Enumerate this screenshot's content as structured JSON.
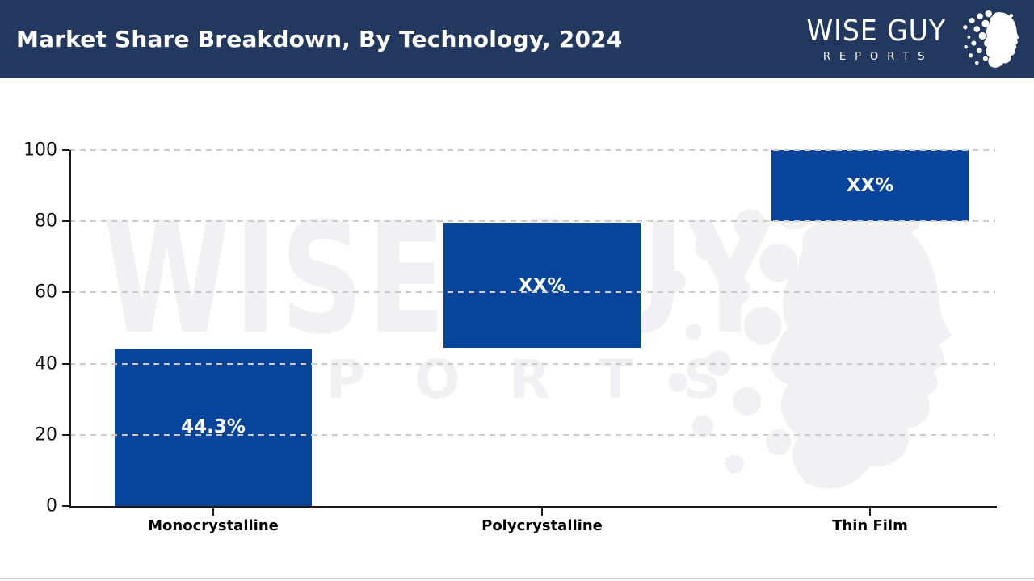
{
  "header": {
    "title": "Market Share Breakdown, By Technology, 2024",
    "bg_color": "#22385f",
    "logo": {
      "line1": "WISE GUY",
      "line2": "REPORTS"
    }
  },
  "watermark": {
    "line1": "WISE GUY",
    "line2": "REPORTS"
  },
  "chart_data": {
    "type": "bar",
    "subtype": "floating-segment-bars (cumulative market-share breakdown)",
    "title": "Market Share Breakdown, By Technology, 2024",
    "categories": [
      "Monocrystalline",
      "Polycrystalline",
      "Thin Film"
    ],
    "bars": [
      {
        "category": "Monocrystalline",
        "start": 0,
        "end": 44.3,
        "label": "44.3%"
      },
      {
        "category": "Polycrystalline",
        "start": 44.4,
        "end": 79.6,
        "label": "XX%"
      },
      {
        "category": "Thin Film",
        "start": 80,
        "end": 100,
        "label": "XX%"
      }
    ],
    "xlabel": "",
    "ylabel": "",
    "ylim": [
      0,
      100
    ],
    "yticks": [
      0,
      20,
      40,
      60,
      80,
      100
    ],
    "grid": "horizontal-dashed",
    "legend": "none",
    "bar_color": "#07459c",
    "bar_label_color": "#ffffff"
  },
  "colors": {
    "header_bg": "#22385f",
    "bar_blue": "#07459c",
    "gridline": "#cccccc",
    "axis": "#1a1a1a",
    "watermark": "#f1f1f3"
  }
}
